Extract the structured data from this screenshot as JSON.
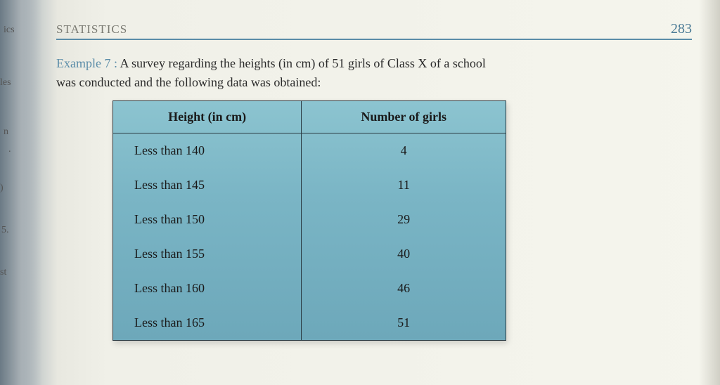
{
  "margins": {
    "ics": "ics",
    "les": "les",
    "n": "n",
    "dot": ".",
    "paren": ")",
    "five": "5.",
    "st": "st"
  },
  "header": {
    "section_label": "STATISTICS",
    "page_number": "283"
  },
  "example": {
    "label": "Example 7 :",
    "text_part1": "A survey regarding the heights (in cm) of 51 girls of Class X of a school",
    "text_part2": "was conducted and the following data was obtained:"
  },
  "table": {
    "type": "table",
    "columns": [
      "Height (in cm)",
      "Number of girls"
    ],
    "rows": [
      [
        "Less than 140",
        "4"
      ],
      [
        "Less than 145",
        "11"
      ],
      [
        "Less than 150",
        "29"
      ],
      [
        "Less than 155",
        "40"
      ],
      [
        "Less than 160",
        "46"
      ],
      [
        "Less than 165",
        "51"
      ]
    ],
    "background_color": "#7db8c8",
    "border_color": "#2a3a42",
    "header_fontsize": 18,
    "cell_fontsize": 18,
    "text_color": "#1a1a1a",
    "col_widths": [
      "48%",
      "52%"
    ]
  }
}
